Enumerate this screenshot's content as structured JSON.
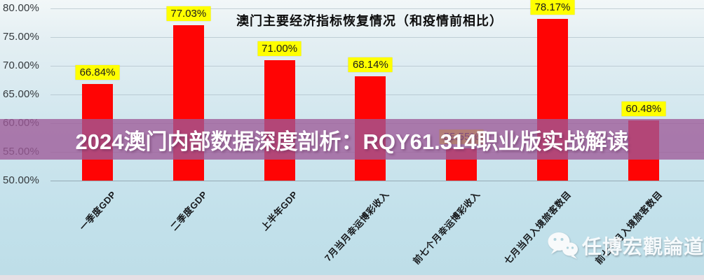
{
  "title": "澳门主要经济指标恢复情况（和疫情前相比）",
  "overlay": {
    "text": "2024澳门内部数据深度剖析：RQY61.314职业版实战解读",
    "band_color": "#9d5a98",
    "text_color": "#ffffff"
  },
  "watermark": {
    "icon": "wechat-icon",
    "text": "任博宏觀論道"
  },
  "chart_data": {
    "type": "bar",
    "title": "澳门主要经济指标恢复情况（和疫情前相比）",
    "categories": [
      "一季度GDP",
      "二季度GDP",
      "上半年GDP",
      "7月当月幸运博彩收入",
      "前七个月幸运博彩收入",
      "七月当月入境旅客数目",
      "前七个月入境旅客数目"
    ],
    "values": [
      66.84,
      77.03,
      71.0,
      68.14,
      55.55,
      78.17,
      60.48
    ],
    "value_labels": [
      "66.84%",
      "77.03%",
      "71.00%",
      "68.14%",
      "55.55%",
      "78.17%",
      "60.48%"
    ],
    "yticks": [
      "80.00%",
      "75.00%",
      "70.00%",
      "65.00%",
      "60.00%",
      "55.00%",
      "50.00%"
    ],
    "ytick_values": [
      80,
      75,
      70,
      65,
      60,
      55,
      50
    ],
    "ylim": [
      50,
      80
    ],
    "xlabel": "",
    "ylabel": "",
    "grid": true,
    "legend": "none",
    "bar_color": "#ff0404",
    "value_label_bg": "#ffff00"
  }
}
